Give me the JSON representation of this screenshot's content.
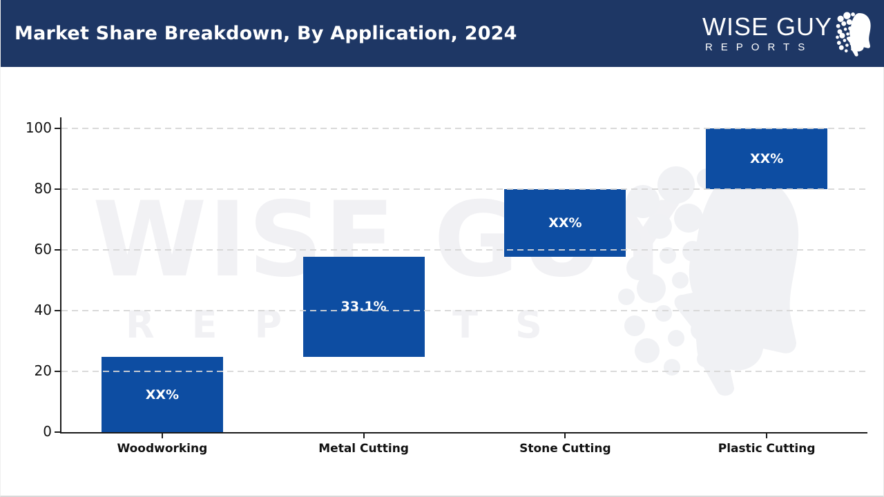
{
  "header": {
    "title": "Market Share Breakdown, By Application, 2024",
    "logo": {
      "line1": "WISE GUY",
      "line2": "REPORTS"
    },
    "bg_color": "#1e3765"
  },
  "watermark": {
    "line1": "WISE GUY",
    "line2": "REPORTS"
  },
  "chart_data": {
    "type": "bar",
    "subtype": "waterfall",
    "title": "Market Share Breakdown, By Application, 2024",
    "categories": [
      "Woodworking",
      "Metal Cutting",
      "Stone Cutting",
      "Plastic Cutting"
    ],
    "bars": [
      {
        "category": "Woodworking",
        "start": 0,
        "end": 24.7,
        "value": 24.7,
        "label": "XX%"
      },
      {
        "category": "Metal Cutting",
        "start": 24.7,
        "end": 57.8,
        "value": 33.1,
        "label": "33.1%"
      },
      {
        "category": "Stone Cutting",
        "start": 57.8,
        "end": 80.1,
        "value": 22.3,
        "label": "XX%"
      },
      {
        "category": "Plastic Cutting",
        "start": 80.1,
        "end": 100,
        "value": 19.9,
        "label": "XX%"
      }
    ],
    "xlabel": "",
    "ylabel": "",
    "ylim": [
      0,
      100
    ],
    "yticks": [
      0,
      20,
      40,
      60,
      80,
      100
    ],
    "grid": "horizontal dashed",
    "legend": "none",
    "bar_color": "#0d4da2",
    "bar_label_color": "#ffffff",
    "axis_color": "#1a1a1a",
    "gridline_color": "#d6d6d6"
  }
}
